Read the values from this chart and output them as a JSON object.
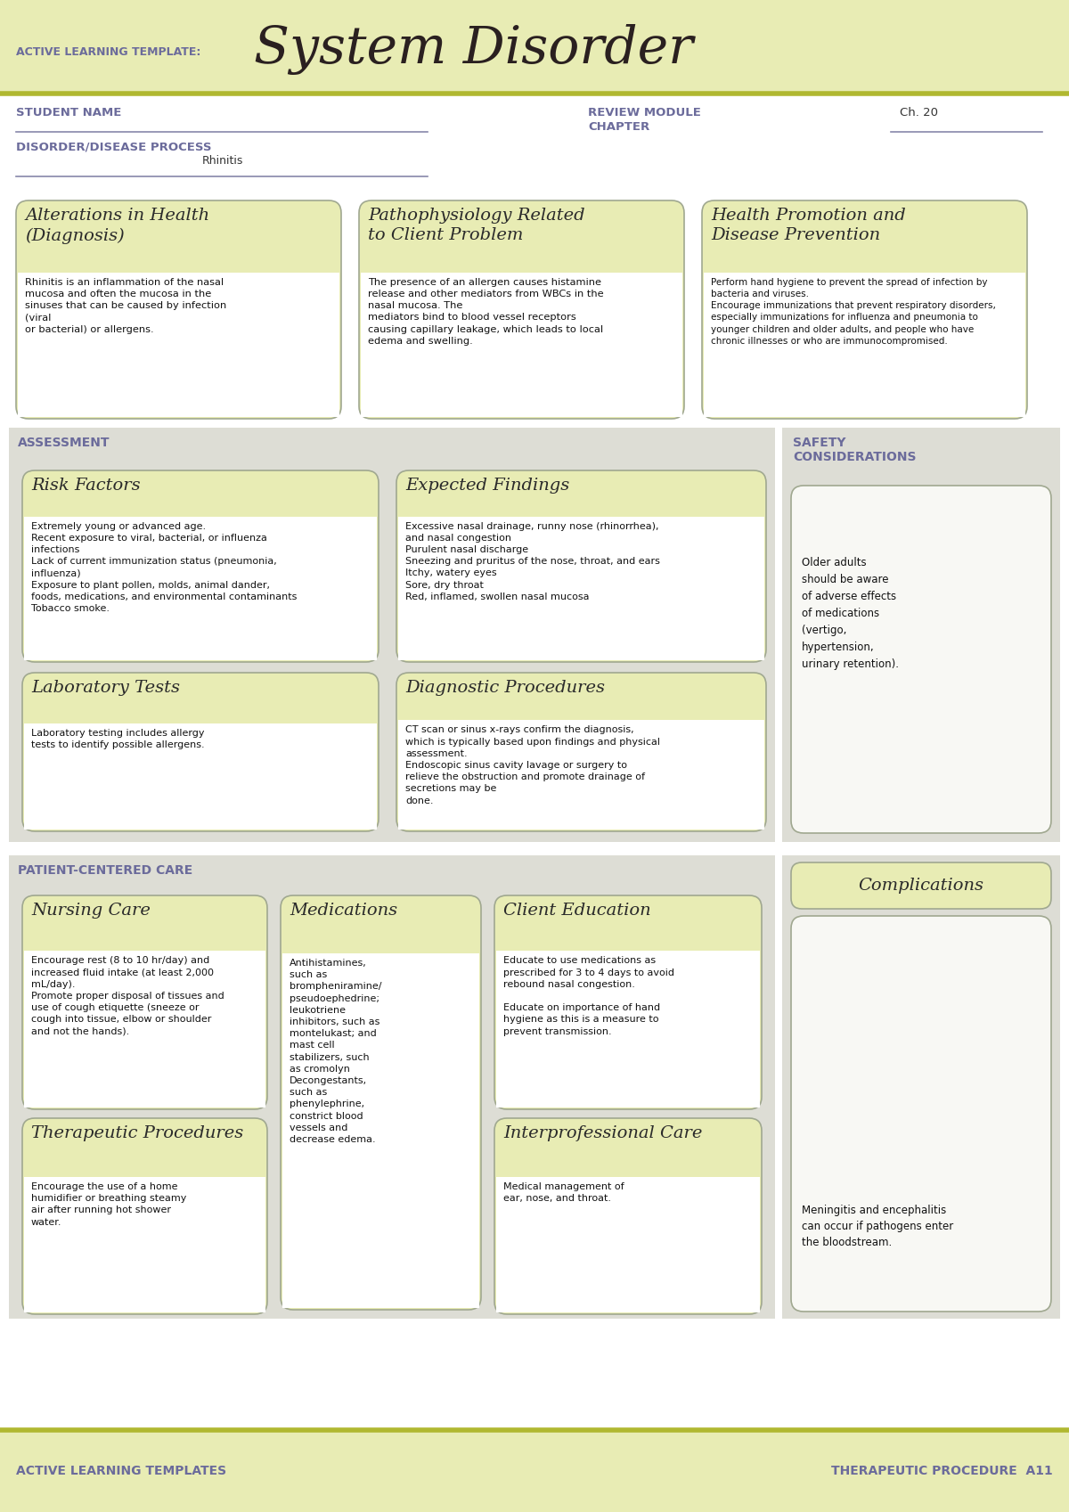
{
  "bg_header": "#e8ecb4",
  "bg_white": "#ffffff",
  "bg_section": "#ddddd5",
  "bg_card": "#e8ecb4",
  "border_color": "#a0a890",
  "title_color": "#2a2a2a",
  "header_purple": "#6b6b9b",
  "olive_line": "#b0b830",
  "active_learning_label": "ACTIVE LEARNING TEMPLATE:",
  "system_disorder_title": "System Disorder",
  "student_name_label": "STUDENT NAME",
  "disorder_label": "DISORDER/DISEASE PROCESS",
  "disorder_value": "Rhinitis",
  "review_module_label": "REVIEW MODULE\nCHAPTER",
  "chapter_value": "Ch. 20",
  "section1_title": "Alterations in Health\n(Diagnosis)",
  "section1_body": "Rhinitis is an inflammation of the nasal\nmucosa and often the mucosa in the\nsinuses that can be caused by infection\n(viral\nor bacterial) or allergens.",
  "section2_title": "Pathophysiology Related\nto Client Problem",
  "section2_body": "The presence of an allergen causes histamine\nrelease and other mediators from WBCs in the\nnasal mucosa. The\nmediators bind to blood vessel receptors\ncausing capillary leakage, which leads to local\nedema and swelling.",
  "section3_title": "Health Promotion and\nDisease Prevention",
  "section3_body": "Perform hand hygiene to prevent the spread of infection by\nbacteria and viruses.\nEncourage immunizations that prevent respiratory disorders,\nespecially immunizations for influenza and pneumonia to\nyounger children and older adults, and people who have\nchronic illnesses or who are immunocompromised.",
  "assessment_label": "ASSESSMENT",
  "safety_label": "SAFETY\nCONSIDERATIONS",
  "risk_title": "Risk Factors",
  "risk_body": "Extremely young or advanced age.\nRecent exposure to viral, bacterial, or influenza\ninfections\nLack of current immunization status (pneumonia,\ninfluenza)\nExposure to plant pollen, molds, animal dander,\nfoods, medications, and environmental contaminants\nTobacco smoke.",
  "expected_title": "Expected Findings",
  "expected_body": "Excessive nasal drainage, runny nose (rhinorrhea),\nand nasal congestion\nPurulent nasal discharge\nSneezing and pruritus of the nose, throat, and ears\nItchy, watery eyes\nSore, dry throat\nRed, inflamed, swollen nasal mucosa",
  "safety_body": "Older adults\nshould be aware\nof adverse effects\nof medications\n(vertigo,\nhypertension,\nurinary retention).",
  "lab_title": "Laboratory Tests",
  "lab_body": "Laboratory testing includes allergy\ntests to identify possible allergens.",
  "diag_title": "Diagnostic Procedures",
  "diag_body": "CT scan or sinus x-rays confirm the diagnosis,\nwhich is typically based upon findings and physical\nassessment.\nEndoscopic sinus cavity lavage or surgery to\nrelieve the obstruction and promote drainage of\nsecretions may be\ndone.",
  "patient_care_label": "PATIENT-CENTERED CARE",
  "complications_title": "Complications",
  "nursing_title": "Nursing Care",
  "nursing_body": "Encourage rest (8 to 10 hr/day) and\nincreased fluid intake (at least 2,000\nmL/day).\nPromote proper disposal of tissues and\nuse of cough etiquette (sneeze or\ncough into tissue, elbow or shoulder\nand not the hands).",
  "medications_title": "Medications",
  "medications_body": "Antihistamines,\nsuch as\nbrompheniramine/\npseudoephedrine;\nleukotriene\ninhibitors, such as\nmontelukast; and\nmast cell\nstabilizers, such\nas cromolyn\nDecongestants,\nsuch as\nphenylephrine,\nconstrict blood\nvessels and\ndecrease edema.",
  "client_edu_title": "Client Education",
  "client_edu_body": "Educate to use medications as\nprescribed for 3 to 4 days to avoid\nrebound nasal congestion.\n\nEducate on importance of hand\nhygiene as this is a measure to\nprevent transmission.",
  "therapeutic_title": "Therapeutic Procedures",
  "therapeutic_body": "Encourage the use of a home\nhumidifier or breathing steamy\nair after running hot shower\nwater.",
  "interpro_title": "Interprofessional Care",
  "interpro_body": "Medical management of\near, nose, and throat.",
  "complications_body": "Meningitis and encephalitis\ncan occur if pathogens enter\nthe bloodstream.",
  "footer_left": "ACTIVE LEARNING TEMPLATES",
  "footer_right": "THERAPEUTIC PROCEDURE  A11"
}
